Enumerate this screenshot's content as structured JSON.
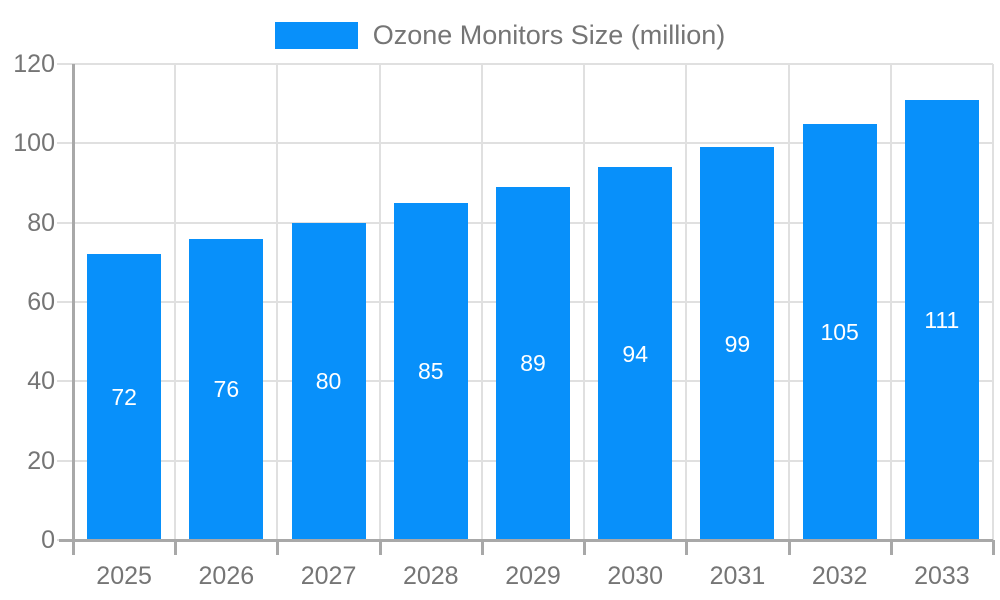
{
  "chart_data": {
    "type": "bar",
    "title": "",
    "legend_label": "Ozone Monitors Size (million)",
    "legend_position": "top",
    "categories": [
      "2025",
      "2026",
      "2027",
      "2028",
      "2029",
      "2030",
      "2031",
      "2032",
      "2033"
    ],
    "series": [
      {
        "name": "Ozone Monitors Size (million)",
        "values": [
          72,
          76,
          80,
          85,
          89,
          94,
          99,
          105,
          111
        ]
      }
    ],
    "ylim": [
      0,
      120
    ],
    "yticks": [
      0,
      20,
      40,
      60,
      80,
      100,
      120
    ],
    "grid": true,
    "value_label_position": "inside-center",
    "colors": {
      "bar": "#0890fa",
      "axis_text": "#757575",
      "value_text": "#ffffff",
      "grid_line": "#e0e0e0",
      "axis_line": "#a8a8a8",
      "background": "#ffffff"
    }
  }
}
